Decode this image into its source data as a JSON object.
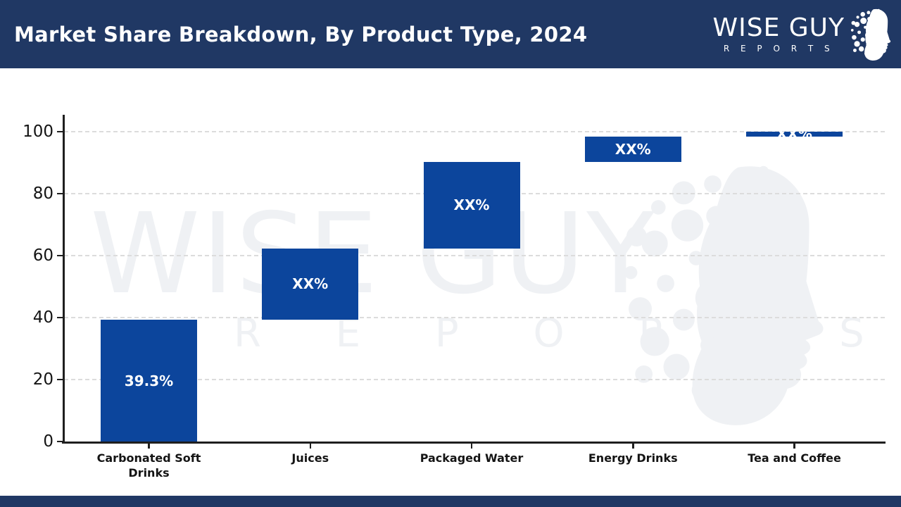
{
  "header": {
    "title": "Market Share Breakdown, By Product Type, 2024",
    "logo_line1": "WISE GUY",
    "logo_line2": "R E P O R T S"
  },
  "watermark": {
    "line1": "WISE GUY",
    "line2": "R E P O R T S"
  },
  "colors": {
    "navy_band": "#203864",
    "bar_blue": "#0c459c",
    "gridline": "#dcdcdc",
    "axis": "#1f1f1f",
    "watermark_gray": "#eff1f4"
  },
  "chart_data": {
    "type": "bar",
    "subtype": "waterfall",
    "title": "Market Share Breakdown, By Product Type, 2024",
    "unit": "%",
    "categories": [
      "Carbonated Soft Drinks",
      "Juices",
      "Packaged Water",
      "Energy Drinks",
      "Tea and Coffee"
    ],
    "segments": [
      {
        "category": "Carbonated Soft Drinks",
        "start": 0,
        "end": 39.3,
        "label": "39.3%"
      },
      {
        "category": "Juices",
        "start": 39.3,
        "end": 62.3,
        "label": "XX%"
      },
      {
        "category": "Packaged Water",
        "start": 62.3,
        "end": 90.2,
        "label": "XX%"
      },
      {
        "category": "Energy Drinks",
        "start": 90.2,
        "end": 98.5,
        "label": "XX%"
      },
      {
        "category": "Tea and Coffee",
        "start": 98.5,
        "end": 100,
        "label": "XX%"
      }
    ],
    "ylim": [
      0,
      100
    ],
    "yticks": [
      0,
      20,
      40,
      60,
      80,
      100
    ],
    "xlabel": "",
    "ylabel": "",
    "grid": "horizontal-dashed",
    "legend": "none",
    "bar_color": "#0c459c",
    "value_label_position": "inside-center"
  }
}
